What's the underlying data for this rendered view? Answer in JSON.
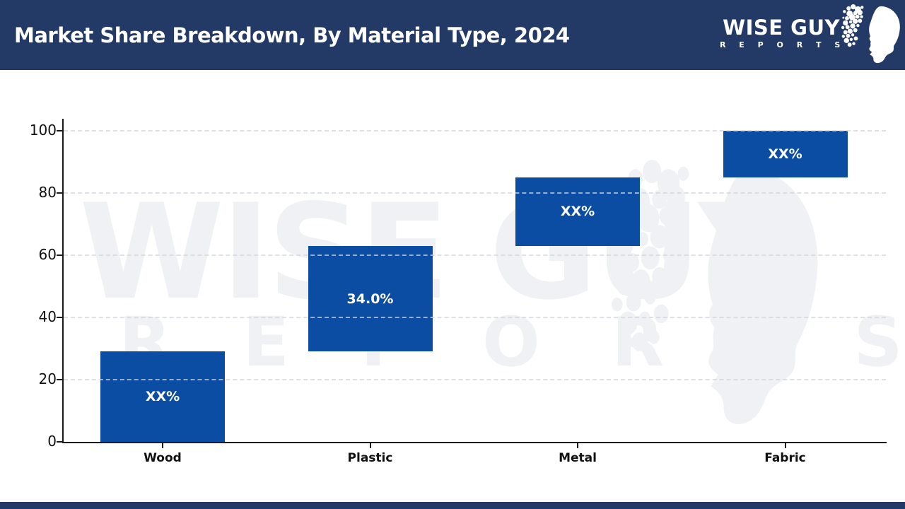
{
  "header": {
    "title": "Market Share Breakdown, By Material Type, 2024",
    "logo": {
      "line1": "WISE GUY",
      "line2": "R E P O R T S"
    }
  },
  "watermark": {
    "line1": "WISE GUY",
    "line2": "R E P O R T S"
  },
  "chart_data": {
    "type": "waterfall",
    "title": "Market Share Breakdown, By Material Type, 2024",
    "categories": [
      "Wood",
      "Plastic",
      "Metal",
      "Fabric"
    ],
    "segments": [
      {
        "category": "Wood",
        "start": 0,
        "end": 29,
        "value": 29,
        "label": "XX%"
      },
      {
        "category": "Plastic",
        "start": 29,
        "end": 63,
        "value": 34.0,
        "label": "34.0%"
      },
      {
        "category": "Metal",
        "start": 63,
        "end": 85,
        "value": 22,
        "label": "XX%"
      },
      {
        "category": "Fabric",
        "start": 85,
        "end": 100,
        "value": 15,
        "label": "XX%"
      }
    ],
    "ylim": [
      0,
      100
    ],
    "y_ticks": [
      0,
      20,
      40,
      60,
      80,
      100
    ],
    "grid": "horizontal-dashed",
    "legend_position": "none",
    "bar_label_visible_value": "34.0%",
    "masked_label_text": "XX%"
  },
  "colors": {
    "header_navy": "#233a66",
    "bar_blue": "#0b4da2",
    "grid_gray": "#d0d4db",
    "watermark_gray": "#f0f1f4",
    "bar_label_white": "#ffffff",
    "axis_black": "#1a1a1a"
  }
}
